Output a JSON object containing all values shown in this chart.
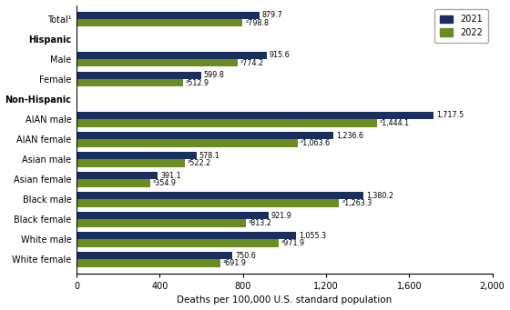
{
  "categories": [
    "Total¹",
    "Hispanic",
    "Male",
    "Female",
    "Non-Hispanic",
    "AIAN male",
    "AIAN female",
    "Asian male",
    "Asian female",
    "Black male",
    "Black female",
    "White male",
    "White female"
  ],
  "values_2021": [
    879.7,
    null,
    915.6,
    599.8,
    null,
    1717.5,
    1236.6,
    578.1,
    391.1,
    1380.2,
    921.9,
    1055.3,
    750.6
  ],
  "values_2022": [
    798.8,
    null,
    774.2,
    512.9,
    null,
    1444.1,
    1063.6,
    522.2,
    354.9,
    1263.3,
    813.2,
    971.9,
    691.9
  ],
  "labels_2021": [
    "879.7",
    "",
    "915.6",
    "599.8",
    "",
    "1,717.5",
    "1,236.6",
    "578.1",
    "391.1",
    "1,380.2",
    "921.9",
    "1,055.3",
    "750.6"
  ],
  "labels_2022": [
    "²798.8",
    "",
    "²774.2",
    "²512.9",
    "",
    "²1,444.1",
    "²1,063.6",
    "²522.2",
    "²354.9",
    "²1,263.3",
    "²813.2",
    "²971.9",
    "²691.9"
  ],
  "color_2021": "#1a2f5e",
  "color_2022": "#6b8c21",
  "xlabel": "Deaths per 100,000 U.S. standard population",
  "xlim": [
    0,
    2000
  ],
  "xticks": [
    0,
    400,
    800,
    1200,
    1600,
    2000
  ],
  "header_rows": [
    1,
    4
  ],
  "bar_height": 0.38,
  "figsize": [
    5.6,
    3.41
  ],
  "dpi": 100
}
